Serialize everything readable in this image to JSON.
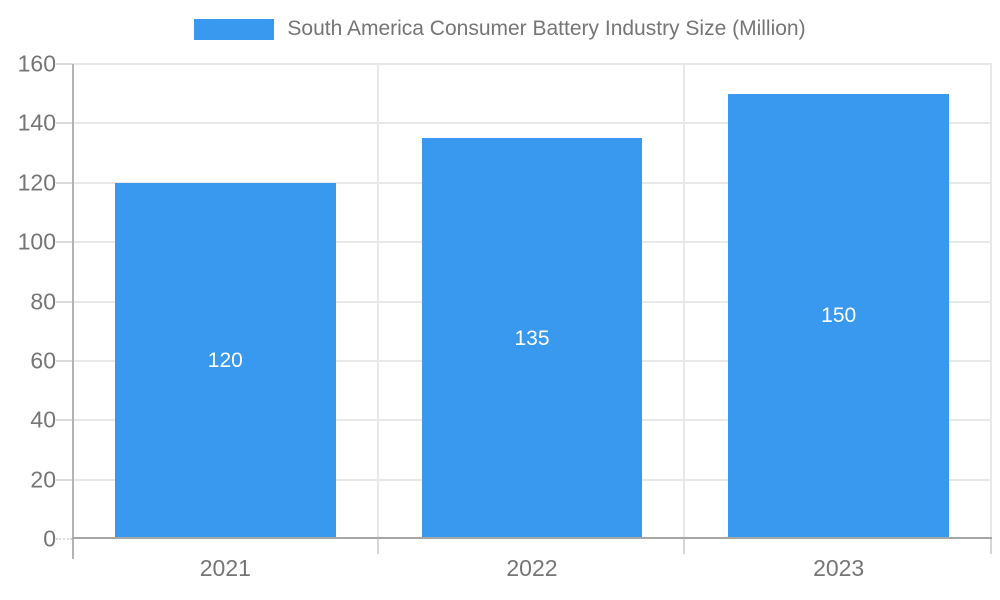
{
  "legend": {
    "label": "South America Consumer Battery Industry Size (Million)",
    "swatch_color": "#3999ee"
  },
  "chart_data": {
    "type": "bar",
    "title": "South America Consumer Battery Industry Size (Million)",
    "categories": [
      "2021",
      "2022",
      "2023"
    ],
    "values": [
      120,
      135,
      150
    ],
    "series": [
      {
        "name": "South America Consumer Battery Industry Size (Million)",
        "values": [
          120,
          135,
          150
        ]
      }
    ],
    "data_labels": [
      "120",
      "135",
      "150"
    ],
    "yticks": [
      0,
      20,
      40,
      60,
      80,
      100,
      120,
      140,
      160
    ],
    "ylim": [
      0,
      160
    ],
    "ytick_interval": 20,
    "xlabel": "",
    "ylabel": "",
    "grid": true,
    "legend_position": "top",
    "colors": {
      "bar": "#3999ee",
      "data_label": "#ffffff",
      "axis_text": "#757575",
      "gridline": "#e8e8e8",
      "axis_line": "#b3b3b3",
      "baseline": "#a6a6a6",
      "tick": "#d6d6d6"
    }
  }
}
